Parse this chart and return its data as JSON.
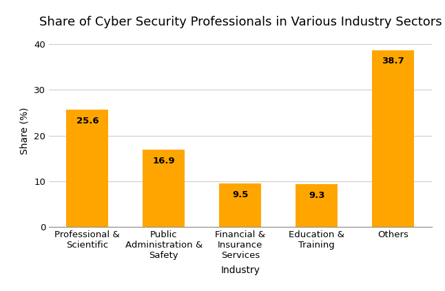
{
  "title": "Share of Cyber Security Professionals in Various Industry Sectors",
  "xlabel": "Industry",
  "ylabel": "Share (%)",
  "categories": [
    "Professional &\nScientific",
    "Public\nAdministration &\nSafety",
    "Financial &\nInsurance\nServices",
    "Education &\nTraining",
    "Others"
  ],
  "values": [
    25.6,
    16.9,
    9.5,
    9.3,
    38.7
  ],
  "bar_color": "#FFA500",
  "label_color": "#000000",
  "ylim": [
    0,
    42
  ],
  "yticks": [
    0,
    10,
    20,
    30,
    40
  ],
  "background_color": "#ffffff",
  "title_fontsize": 13,
  "axis_label_fontsize": 10,
  "tick_fontsize": 9.5,
  "bar_label_fontsize": 9.5,
  "grid_color": "#cccccc",
  "bar_width": 0.55
}
